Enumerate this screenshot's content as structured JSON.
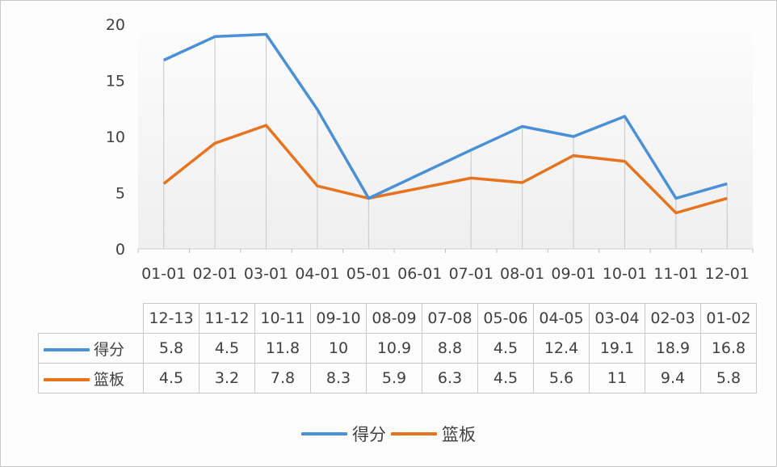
{
  "chart_data": {
    "type": "line",
    "title": "",
    "xlabel": "",
    "ylabel": "",
    "ylim": [
      0,
      20
    ],
    "yticks": [
      0,
      5,
      10,
      15,
      20
    ],
    "grid": "vertical drop lines at data points",
    "legend_position": "bottom",
    "categories": [
      "01-01",
      "02-01",
      "03-01",
      "04-01",
      "05-01",
      "06-01",
      "07-01",
      "08-01",
      "09-01",
      "10-01",
      "11-01",
      "12-01"
    ],
    "point_seasons": [
      "01-02",
      "02-03",
      "03-04",
      "04-05",
      "05-06",
      null,
      "07-08",
      "08-09",
      "09-10",
      "10-11",
      "11-12",
      "12-13"
    ],
    "series": [
      {
        "name": "得分",
        "color": "#4a90d9",
        "values": [
          16.8,
          18.9,
          19.1,
          12.4,
          4.5,
          null,
          8.8,
          10.9,
          10,
          11.8,
          4.5,
          5.8
        ]
      },
      {
        "name": "篮板",
        "color": "#e8731f",
        "values": [
          5.8,
          9.4,
          11,
          5.6,
          4.5,
          null,
          6.3,
          5.9,
          8.3,
          7.8,
          3.2,
          4.5
        ]
      }
    ],
    "data_table": {
      "columns": [
        "12-13",
        "11-12",
        "10-11",
        "09-10",
        "08-09",
        "07-08",
        "05-06",
        "04-05",
        "03-04",
        "02-03",
        "01-02"
      ],
      "rows": [
        {
          "name": "得分",
          "values": [
            "5.8",
            "4.5",
            "11.8",
            "10",
            "10.9",
            "8.8",
            "4.5",
            "12.4",
            "19.1",
            "18.9",
            "16.8"
          ]
        },
        {
          "name": "篮板",
          "values": [
            "4.5",
            "3.2",
            "7.8",
            "8.3",
            "5.9",
            "6.3",
            "4.5",
            "5.6",
            "11",
            "9.4",
            "5.8"
          ]
        }
      ]
    }
  },
  "y_axis": {
    "labels": [
      "20",
      "15",
      "10",
      "5",
      "0"
    ]
  },
  "x_axis": {
    "labels": [
      "01-01",
      "02-01",
      "03-01",
      "04-01",
      "05-01",
      "06-01",
      "07-01",
      "08-01",
      "09-01",
      "10-01",
      "11-01",
      "12-01"
    ]
  },
  "table": {
    "headers": [
      "12-13",
      "11-12",
      "10-11",
      "09-10",
      "08-09",
      "07-08",
      "05-06",
      "04-05",
      "03-04",
      "02-03",
      "01-02"
    ],
    "row_score": {
      "label": "得分",
      "values": [
        "5.8",
        "4.5",
        "11.8",
        "10",
        "10.9",
        "8.8",
        "4.5",
        "12.4",
        "19.1",
        "18.9",
        "16.8"
      ]
    },
    "row_rebound": {
      "label": "篮板",
      "values": [
        "4.5",
        "3.2",
        "7.8",
        "8.3",
        "5.9",
        "6.3",
        "4.5",
        "5.6",
        "11",
        "9.4",
        "5.8"
      ]
    }
  },
  "legend": {
    "items": [
      {
        "label": "得分",
        "color": "#4a90d9"
      },
      {
        "label": "篮板",
        "color": "#e8731f"
      }
    ]
  },
  "colors": {
    "score": "#4a90d9",
    "rebound": "#e8731f",
    "grid": "#c8c8c8",
    "text": "#404040"
  }
}
